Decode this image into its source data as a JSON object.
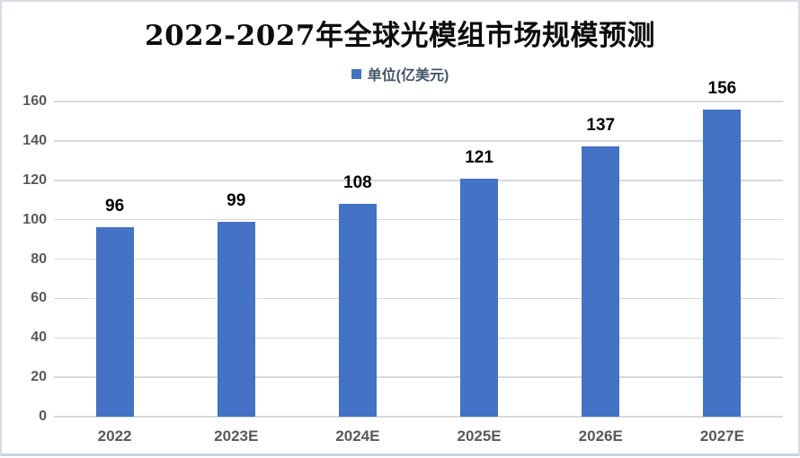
{
  "window": {
    "background": "#ffffff",
    "border_color": "#d6dbe4"
  },
  "header": {
    "title": "2022-2027年全球光模组市场规模预测"
  },
  "legend": {
    "label": "单位(亿美元)",
    "marker_color": "#4472C4",
    "text_color": "#44546A"
  },
  "chart_data": {
    "type": "bar",
    "title": "2022-2027年全球光模组市场规模预测",
    "legend_entries": [
      "单位(亿美元)"
    ],
    "legend_position": "top",
    "categories": [
      "2022",
      "2023E",
      "2024E",
      "2025E",
      "2026E",
      "2027E"
    ],
    "values": [
      96,
      99,
      108,
      121,
      137,
      156
    ],
    "xlabel": "",
    "ylabel": "",
    "ylim": [
      0,
      160
    ],
    "ytick_step": 20,
    "yticks": [
      0,
      20,
      40,
      60,
      80,
      100,
      120,
      140,
      160
    ],
    "grid": true,
    "data_labels": true,
    "bar_color": "#4472C4",
    "gridline_color": "#d9d9d9",
    "axis_tick_color": "#595959",
    "value_label_color": "#000000"
  }
}
